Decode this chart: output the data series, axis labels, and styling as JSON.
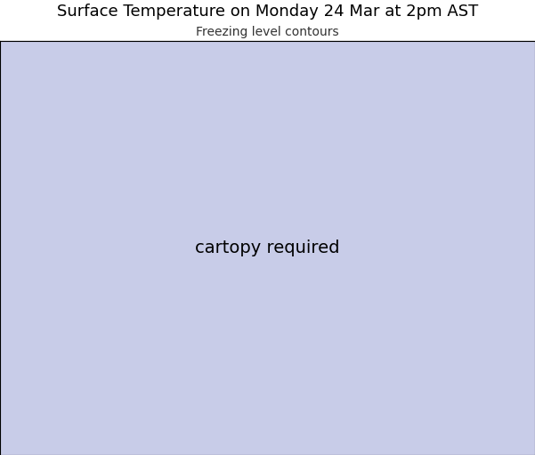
{
  "title": "Surface Temperature on Monday 24 Mar at 2pm AST",
  "subtitle": "Freezing level contours",
  "title_fontsize": 13,
  "subtitle_fontsize": 10,
  "map_bg_color": "#c8cce8",
  "header_bg_color": "#f0f0f0",
  "contour_color": "red",
  "contour_label_color": "black",
  "grid_color": "#9999bb",
  "extent": [
    -85,
    -55,
    7,
    27
  ],
  "figsize": [
    6.01,
    5.11
  ],
  "dpi": 100
}
